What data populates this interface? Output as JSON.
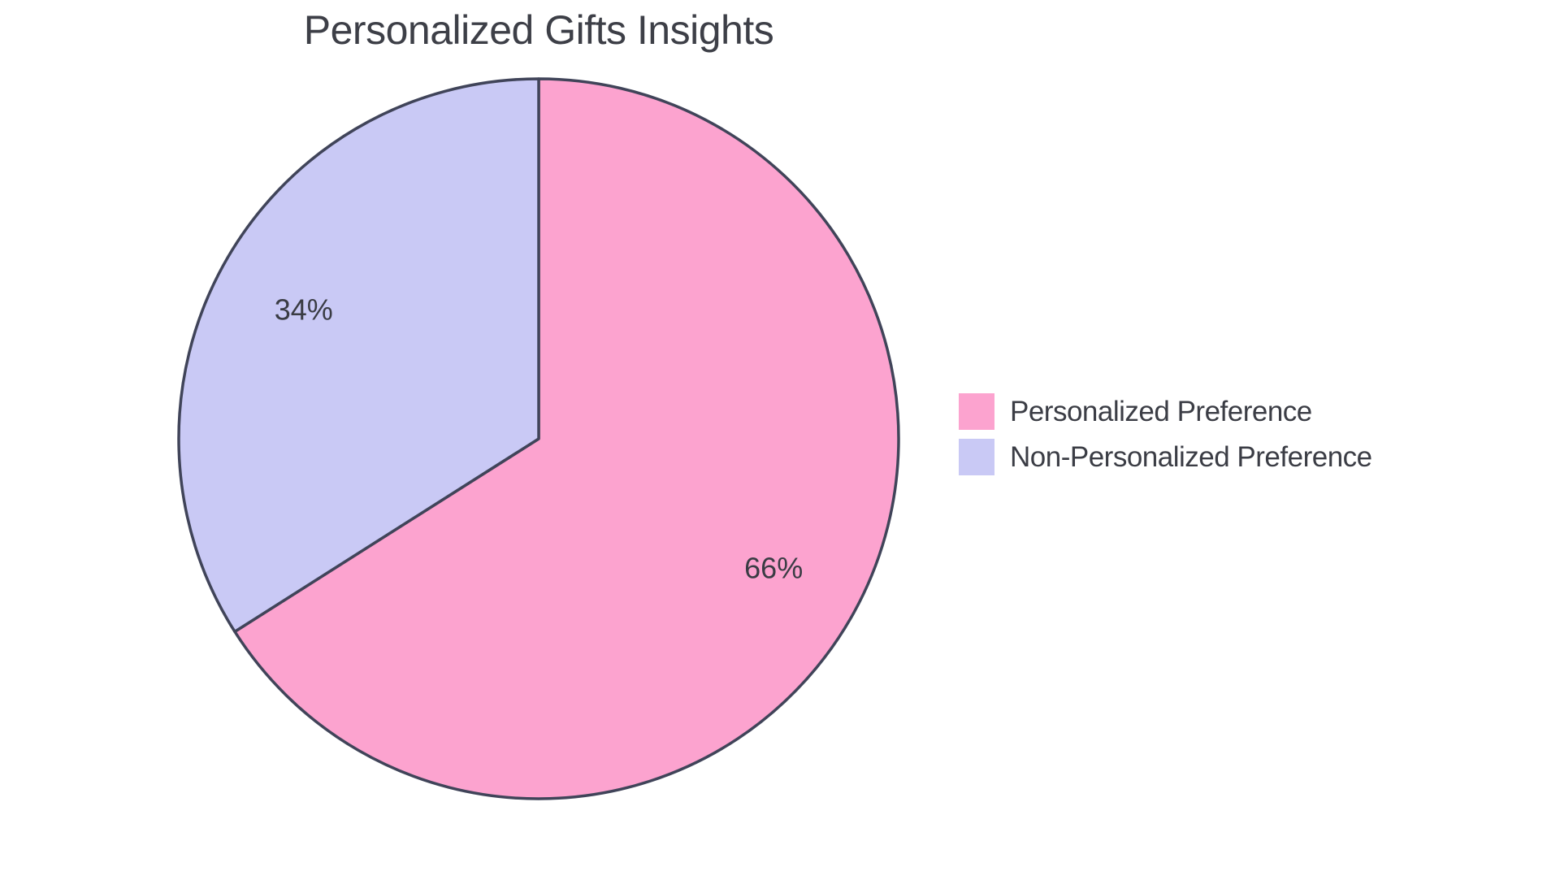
{
  "title": "Personalized Gifts Insights",
  "colors": {
    "background": "#ffffff",
    "text": "#3d3f47",
    "slice_border": "#404459"
  },
  "chart_data": {
    "type": "pie",
    "title": "Personalized Gifts Insights",
    "categories": [
      "Personalized Preference",
      "Non-Personalized Preference"
    ],
    "values": [
      66,
      34
    ],
    "slice_labels": [
      "66%",
      "34%"
    ],
    "slice_colors": [
      "#fca3cf",
      "#c9c9f5"
    ],
    "slice_border_color": "#404459",
    "start_angle": "12 o'clock",
    "direction": "clockwise",
    "legend_position": "right",
    "legend": [
      {
        "label": "Personalized Preference",
        "color": "#fca3cf"
      },
      {
        "label": "Non-Personalized Preference",
        "color": "#c9c9f5"
      }
    ]
  }
}
